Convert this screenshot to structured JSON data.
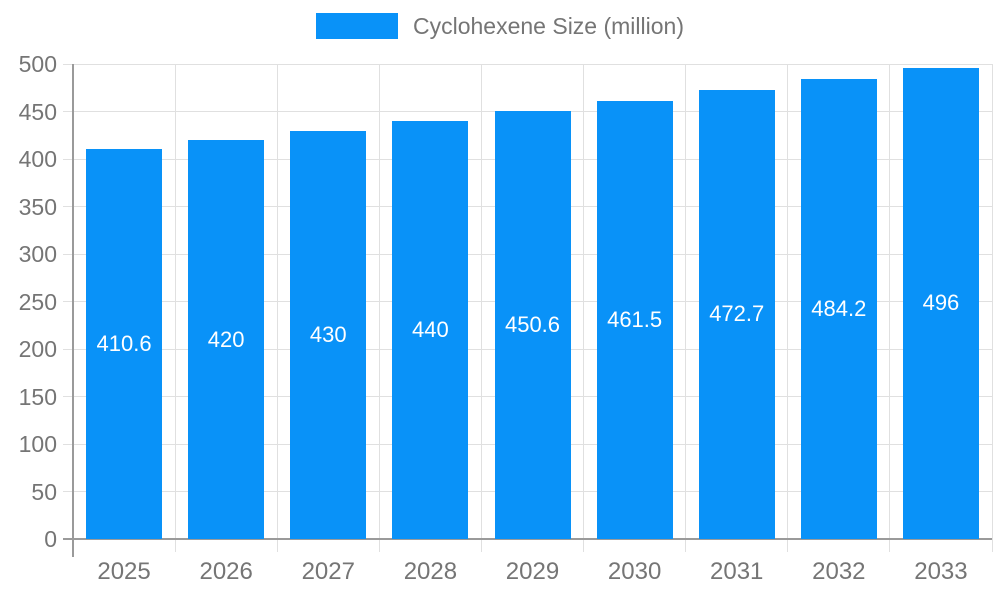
{
  "legend": {
    "label": "Cyclohexene Size (million)"
  },
  "colors": {
    "bar": "#0992f8",
    "grid": "#e0e0e0",
    "axis": "#9a9a9a",
    "tick_text": "#757575",
    "bar_label_text": "#ffffff",
    "background": "#ffffff"
  },
  "chart_data": {
    "type": "bar",
    "title": "Cyclohexene Size (million)",
    "categories": [
      "2025",
      "2026",
      "2027",
      "2028",
      "2029",
      "2030",
      "2031",
      "2032",
      "2033"
    ],
    "values": [
      410.6,
      420,
      430,
      440,
      450.6,
      461.5,
      472.7,
      484.2,
      496
    ],
    "bar_labels": [
      "410.6",
      "420",
      "430",
      "440",
      "450.6",
      "461.5",
      "472.7",
      "484.2",
      "496"
    ],
    "xlabel": "",
    "ylabel": "",
    "ylim": [
      0,
      500
    ],
    "y_ticks": [
      0,
      50,
      100,
      150,
      200,
      250,
      300,
      350,
      400,
      450,
      500
    ],
    "grid": true,
    "legend_position": "top-center",
    "bar_label_position": "center-inside"
  }
}
